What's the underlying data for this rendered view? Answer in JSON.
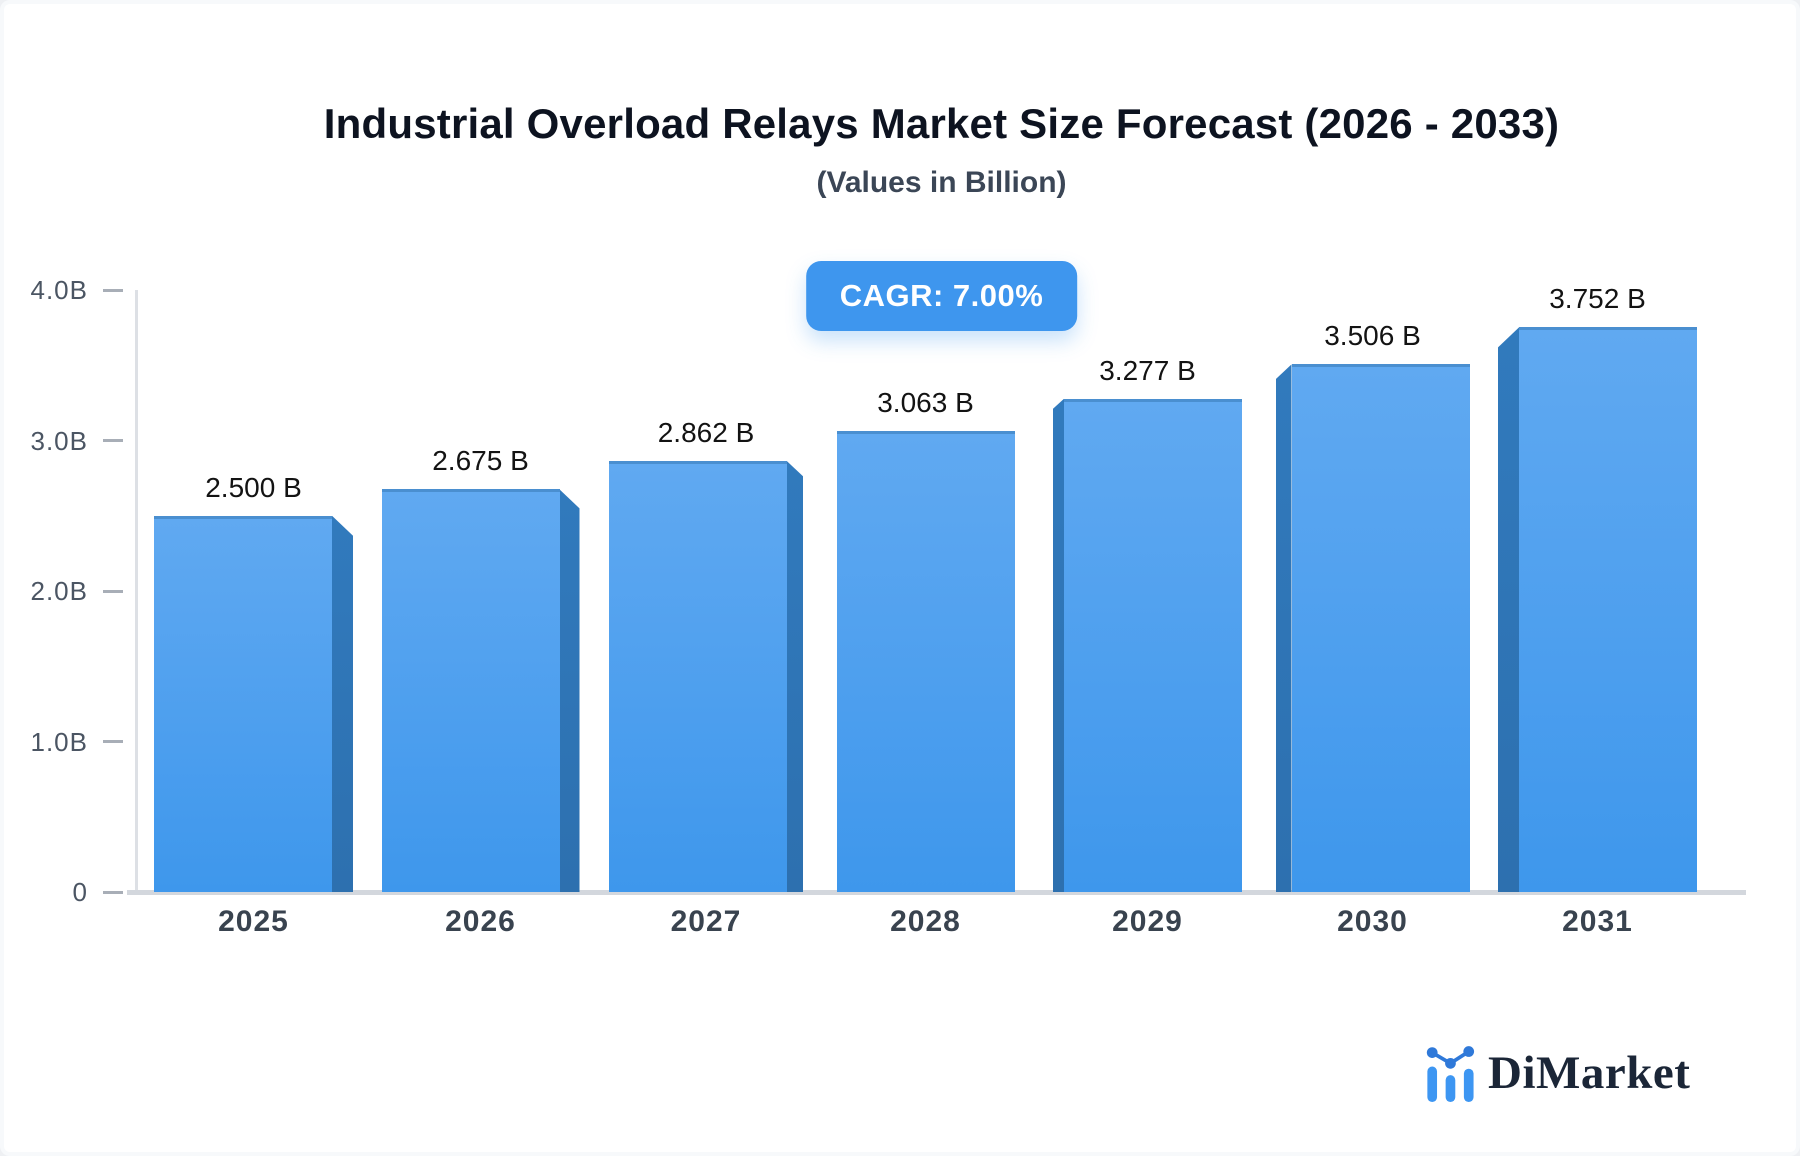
{
  "header": {
    "title": "Industrial Overload Relays Market Size Forecast (2026 - 2033)",
    "subtitle": "(Values in Billion)",
    "cagr_badge": "CAGR: 7.00%"
  },
  "chart_data": {
    "type": "bar",
    "title": "Industrial Overload Relays Market Size Forecast (2026 - 2033)",
    "subtitle": "(Values in Billion)",
    "unit": "Billion",
    "cagr": "7.00%",
    "categories": [
      "2025",
      "2026",
      "2027",
      "2028",
      "2029",
      "2030",
      "2031"
    ],
    "values": [
      2.5,
      2.675,
      2.862,
      3.063,
      3.277,
      3.506,
      3.752
    ],
    "bar_labels": [
      "2.500 B",
      "2.675 B",
      "2.862 B",
      "3.063 B",
      "3.277 B",
      "3.506 B",
      "3.752 B"
    ],
    "ylim": [
      0,
      4.0
    ],
    "y_ticks": [
      {
        "value": 0,
        "label": "0"
      },
      {
        "value": 1,
        "label": "1.0B"
      },
      {
        "value": 2,
        "label": "2.0B"
      },
      {
        "value": 3,
        "label": "3.0B"
      },
      {
        "value": 4,
        "label": "4.0B"
      }
    ],
    "grid": "off",
    "legend": "none",
    "colors": {
      "bar_face_top": "#60a9f1",
      "bar_face_bottom": "#3e97ec",
      "bar_side": "#2e75b6",
      "axis": "#d3d7dd",
      "badge_bg": "#3e96ee",
      "label_text": "#131313",
      "axis_text": "#4b5563"
    }
  },
  "branding": {
    "logo_text": "DiMarket",
    "logo_icon": "bar-line-chart-icon",
    "logo_color": "#3d96f2",
    "logo_text_color": "#1b2637"
  }
}
